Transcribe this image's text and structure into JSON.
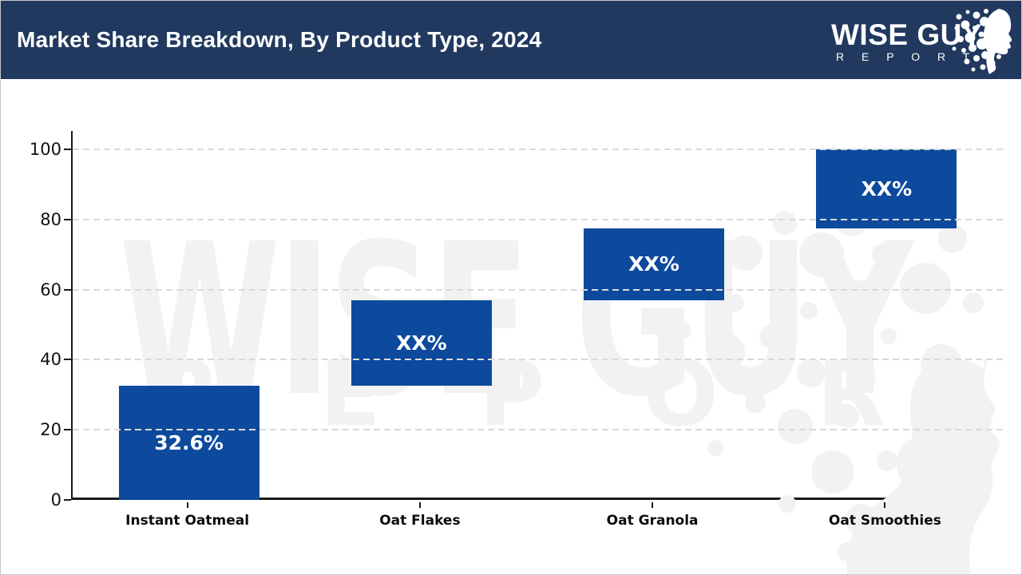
{
  "header": {
    "title": "Market Share Breakdown, By Product Type, 2024",
    "background_color": "#21395f",
    "logo": {
      "name": "WISE GUY",
      "subname": "R E P O R T S"
    }
  },
  "watermark": {
    "line1": "WISE GUY",
    "line2": "R E P O R T S"
  },
  "chart_data": {
    "type": "bar",
    "variant": "waterfall",
    "title": "Market Share Breakdown, By Product Type, 2024",
    "categories": [
      "Instant Oatmeal",
      "Oat Flakes",
      "Oat Granola",
      "Oat Smoothies"
    ],
    "segments": [
      {
        "category": "Instant Oatmeal",
        "start": 0,
        "end": 32.6,
        "label": "32.6%"
      },
      {
        "category": "Oat Flakes",
        "start": 32.6,
        "end": 57.0,
        "label": "XX%"
      },
      {
        "category": "Oat Granola",
        "start": 57.0,
        "end": 77.4,
        "label": "XX%"
      },
      {
        "category": "Oat Smoothies",
        "start": 77.4,
        "end": 100,
        "label": "XX%"
      }
    ],
    "ylim": [
      0,
      105.2
    ],
    "yticks": [
      0,
      20,
      40,
      60,
      80,
      100
    ],
    "xlabel": "",
    "ylabel": "",
    "grid": true,
    "grid_style": "dashed",
    "legend": false,
    "bar_color": "#0d4a9e",
    "bar_label_color": "#ffffff",
    "grid_color": "#d9d9d9",
    "axis_color": "#1a1a1a",
    "tick_label_color": "#111111"
  }
}
